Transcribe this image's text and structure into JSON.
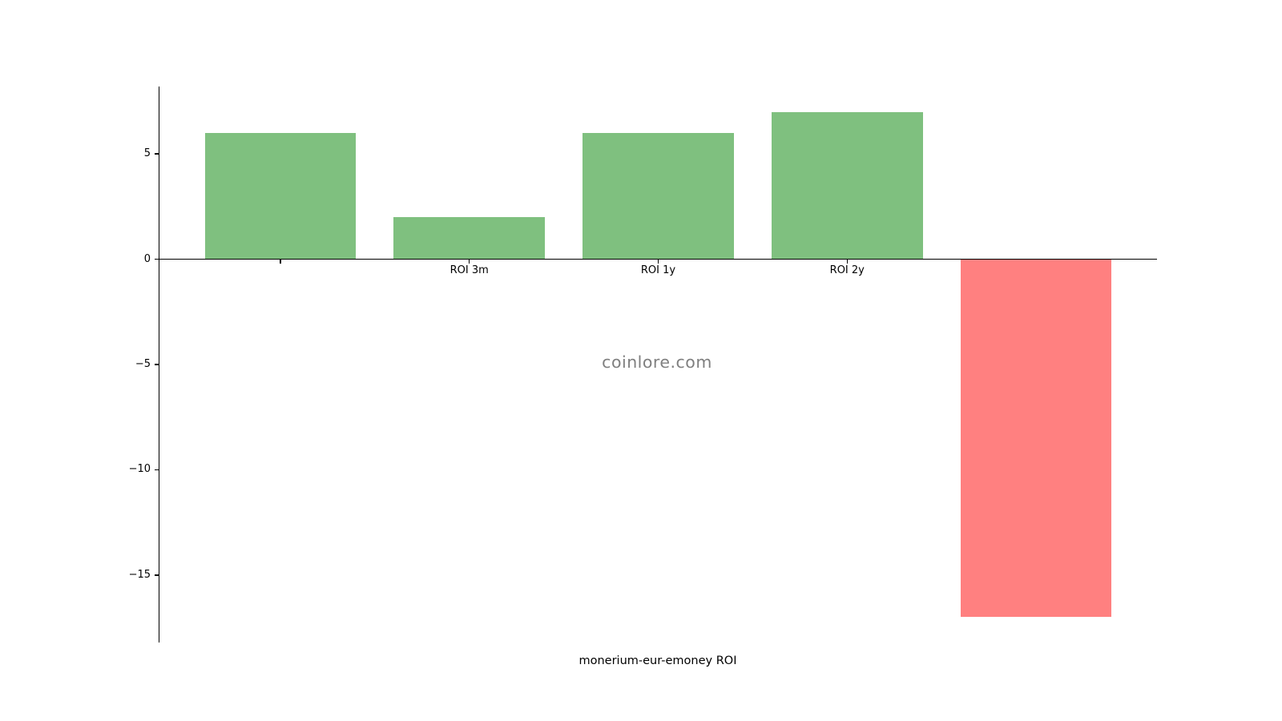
{
  "chart_data": {
    "type": "bar",
    "title": "monerium-eur-emoney ROI",
    "watermark": "coinlore.com",
    "categories": [
      "",
      "ROI 3m",
      "ROI 1y",
      "ROI 2y",
      ""
    ],
    "values": [
      6,
      2,
      6,
      7,
      -17
    ],
    "colors": [
      "#7fc07f",
      "#7fc07f",
      "#7fc07f",
      "#7fc07f",
      "#ff8080"
    ],
    "positive_color": "#7fc07f",
    "negative_color": "#ff8080",
    "yticks": [
      {
        "value": 5,
        "label": "5"
      },
      {
        "value": 0,
        "label": "0"
      },
      {
        "value": -5,
        "label": "−5"
      },
      {
        "value": -10,
        "label": "−10"
      },
      {
        "value": -15,
        "label": "−15"
      }
    ],
    "ylim": [
      -18.2,
      8.2
    ],
    "xlim": [
      -0.64,
      4.64
    ],
    "bar_width": 0.8,
    "x_tick_positions": [
      0,
      1,
      2,
      3
    ],
    "grid": false,
    "legend": null,
    "xlabel": "",
    "ylabel": "",
    "axis_color": "#000000",
    "text_color": "#000000",
    "watermark_color": "#7f7f7f"
  }
}
